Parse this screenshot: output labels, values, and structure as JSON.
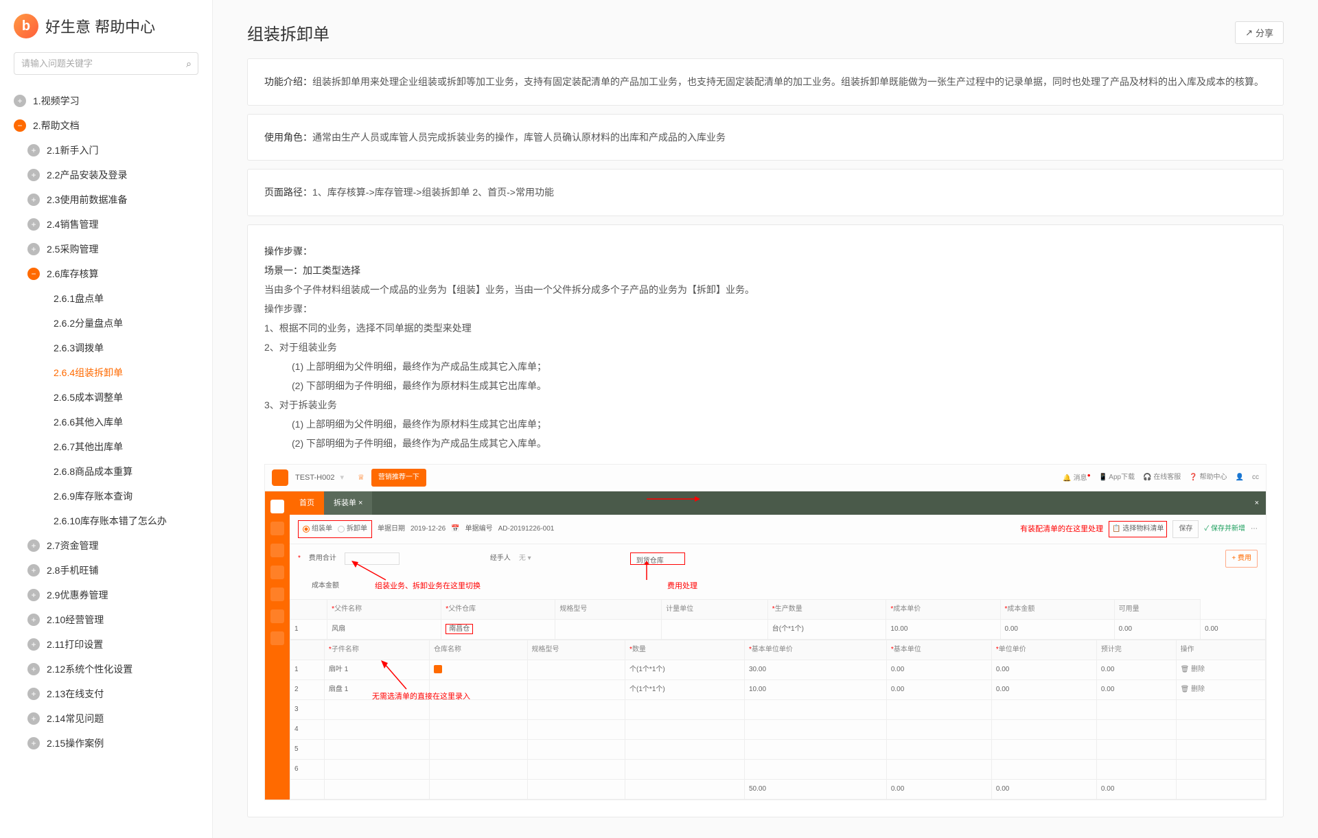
{
  "brand": {
    "title": "好生意 帮助中心",
    "logo_glyph": "b"
  },
  "search": {
    "placeholder": "请输入问题关键字"
  },
  "sidebar": {
    "items": [
      {
        "label": "1.视频学习",
        "level": 1,
        "expanded": false
      },
      {
        "label": "2.帮助文档",
        "level": 1,
        "expanded": true
      },
      {
        "label": "2.1新手入门",
        "level": 2,
        "expanded": false
      },
      {
        "label": "2.2产品安装及登录",
        "level": 2,
        "expanded": false
      },
      {
        "label": "2.3使用前数据准备",
        "level": 2,
        "expanded": false
      },
      {
        "label": "2.4销售管理",
        "level": 2,
        "expanded": false
      },
      {
        "label": "2.5采购管理",
        "level": 2,
        "expanded": false
      },
      {
        "label": "2.6库存核算",
        "level": 2,
        "expanded": true
      },
      {
        "label": "2.6.1盘点单",
        "level": 3
      },
      {
        "label": "2.6.2分量盘点单",
        "level": 3
      },
      {
        "label": "2.6.3调拨单",
        "level": 3
      },
      {
        "label": "2.6.4组装拆卸单",
        "level": 3,
        "active": true
      },
      {
        "label": "2.6.5成本调整单",
        "level": 3
      },
      {
        "label": "2.6.6其他入库单",
        "level": 3
      },
      {
        "label": "2.6.7其他出库单",
        "level": 3
      },
      {
        "label": "2.6.8商品成本重算",
        "level": 3
      },
      {
        "label": "2.6.9库存账本查询",
        "level": 3
      },
      {
        "label": "2.6.10库存账本错了怎么办",
        "level": 3
      },
      {
        "label": "2.7资金管理",
        "level": 2,
        "expanded": false
      },
      {
        "label": "2.8手机旺铺",
        "level": 2,
        "expanded": false
      },
      {
        "label": "2.9优惠券管理",
        "level": 2,
        "expanded": false
      },
      {
        "label": "2.10经营管理",
        "level": 2,
        "expanded": false
      },
      {
        "label": "2.11打印设置",
        "level": 2,
        "expanded": false
      },
      {
        "label": "2.12系统个性化设置",
        "level": 2,
        "expanded": false
      },
      {
        "label": "2.13在线支付",
        "level": 2,
        "expanded": false
      },
      {
        "label": "2.14常见问题",
        "level": 2,
        "expanded": false
      },
      {
        "label": "2.15操作案例",
        "level": 2,
        "expanded": false
      }
    ]
  },
  "page": {
    "title": "组装拆卸单",
    "share": "分享",
    "intro_label": "功能介绍：",
    "intro_text": "组装拆卸单用来处理企业组装或拆卸等加工业务，支持有固定装配清单的产品加工业务，也支持无固定装配清单的加工业务。组装拆卸单既能做为一张生产过程中的记录单据，同时也处理了产品及材料的出入库及成本的核算。",
    "role_label": "使用角色：",
    "role_text": "通常由生产人员或库管人员完成拆装业务的操作，库管人员确认原材料的出库和产成品的入库业务",
    "path_label": "页面路径：",
    "path_text": "1、库存核算->库存管理->组装拆卸单 2、首页->常用功能",
    "steps_label": "操作步骤：",
    "scene_label": "场景一：加工类型选择",
    "scene_text": "当由多个子件材料组装成一个成品的业务为【组装】业务，当由一个父件拆分成多个子产品的业务为【拆卸】业务。",
    "ops_label": "操作步骤：",
    "op1": "1、根据不同的业务，选择不同单据的类型来处理",
    "op2": "2、对于组装业务",
    "op2_1": "(1) 上部明细为父件明细，最终作为产成品生成其它入库单；",
    "op2_2": "(2) 下部明细为子件明细，最终作为原材料生成其它出库单。",
    "op3": "3、对于拆装业务",
    "op3_1": "(1) 上部明细为父件明细，最终作为原材料生成其它出库单；",
    "op3_2": "(2) 下部明细为子件明细，最终作为产成品生成其它入库单。"
  },
  "screenshot": {
    "test_id": "TEST-H002",
    "top_btn": "营销推荐一下",
    "top_right": [
      "消息",
      "App下载",
      "在线客服",
      "帮助中心",
      "cc"
    ],
    "tabs": {
      "home": "首页",
      "active": "拆装单"
    },
    "radio_group": {
      "opt1": "组装单",
      "opt2": "拆卸单"
    },
    "date_label": "单据日期",
    "date_value": "2019-12-26",
    "order_label": "单据编号",
    "order_value": "AD-20191226-001",
    "anno1": "有装配清单的在这里处理",
    "btn_material": "选择物料清单",
    "btn_action1": "保存",
    "btn_action2": "保存并新增",
    "fee_label": "费用合计",
    "person_label": "经手人",
    "dest_label": "到货仓库",
    "anno2": "组装业务、拆卸业务在这里切换",
    "anno3": "费用处理",
    "anno4": "无需选清单的直接在这里录入",
    "cost_total_label": "成本金额",
    "btn_fee": "+ 费用",
    "parent_headers": [
      "",
      "*父件名称",
      "*父件仓库",
      "规格型号",
      "计量单位",
      "*生产数量",
      "*成本单价",
      "*成本金额",
      "可用量"
    ],
    "parent_row": [
      "1",
      "风扇",
      "南昌仓",
      "",
      "",
      "台(个*1个)",
      "10.00",
      "0.00",
      "0.00",
      "0.00"
    ],
    "child_headers": [
      "",
      "*子件名称",
      "仓库名称",
      "规格型号",
      "*数量",
      "*基本单位单价",
      "*基本单位",
      "*单位单价",
      "预计完"
    ],
    "child_rows": [
      [
        "1",
        "扇叶 1",
        "",
        "",
        "个(1个*1个)",
        "30.00",
        "0.00",
        "0.00",
        "0.00"
      ],
      [
        "2",
        "扇盘 1",
        "",
        "",
        "个(1个*1个)",
        "10.00",
        "0.00",
        "0.00",
        "0.00"
      ],
      [
        "3",
        "",
        "",
        "",
        "",
        "",
        "",
        "",
        ""
      ],
      [
        "4",
        "",
        "",
        "",
        "",
        "",
        "",
        "",
        ""
      ],
      [
        "5",
        "",
        "",
        "",
        "",
        "",
        "",
        "",
        ""
      ],
      [
        "6",
        "",
        "",
        "",
        "",
        "",
        "",
        "",
        ""
      ]
    ],
    "totals": [
      "50.00",
      "0.00",
      "0.00",
      "0.00"
    ],
    "op_col": "操作",
    "del_icon": "删除"
  }
}
